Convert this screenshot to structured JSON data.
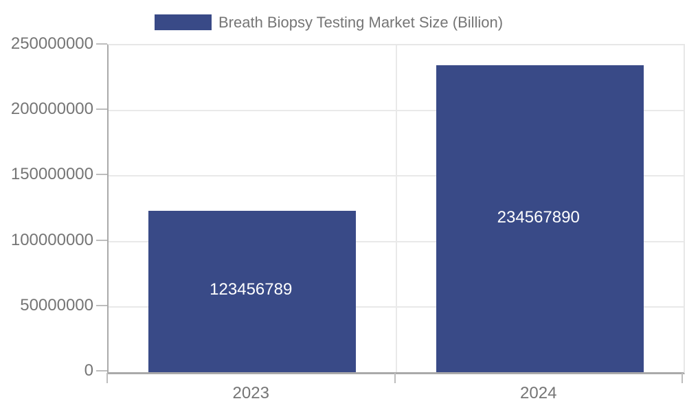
{
  "legend": {
    "label": "Breath Biopsy Testing Market Size (Billion)"
  },
  "chart_data": {
    "type": "bar",
    "title": "Breath Biopsy Testing Market Size (Billion)",
    "categories": [
      "2023",
      "2024"
    ],
    "values": [
      123456789,
      234567890
    ],
    "value_labels": [
      "123456789",
      "234567890"
    ],
    "xlabel": "",
    "ylabel": "",
    "ylim": [
      0,
      250000000
    ],
    "yticks": [
      0,
      50000000,
      100000000,
      150000000,
      200000000,
      250000000
    ],
    "ytick_labels": [
      "0",
      "50000000",
      "100000000",
      "150000000",
      "200000000",
      "250000000"
    ],
    "grid": "horizontal gridlines at 50000000 steps plus vertical category separator",
    "legend_position": "top-center",
    "value_labels_position": "centered-inside-bars"
  },
  "colors": {
    "bar": "#394A87",
    "value_label_text": "#ffffff",
    "axis_text": "#757575",
    "legend_text": "#757575",
    "gridline": "#e9e9e9",
    "axis_line": "#a9a9a9",
    "tick_line": "#bdbdbd",
    "background": "#ffffff"
  }
}
